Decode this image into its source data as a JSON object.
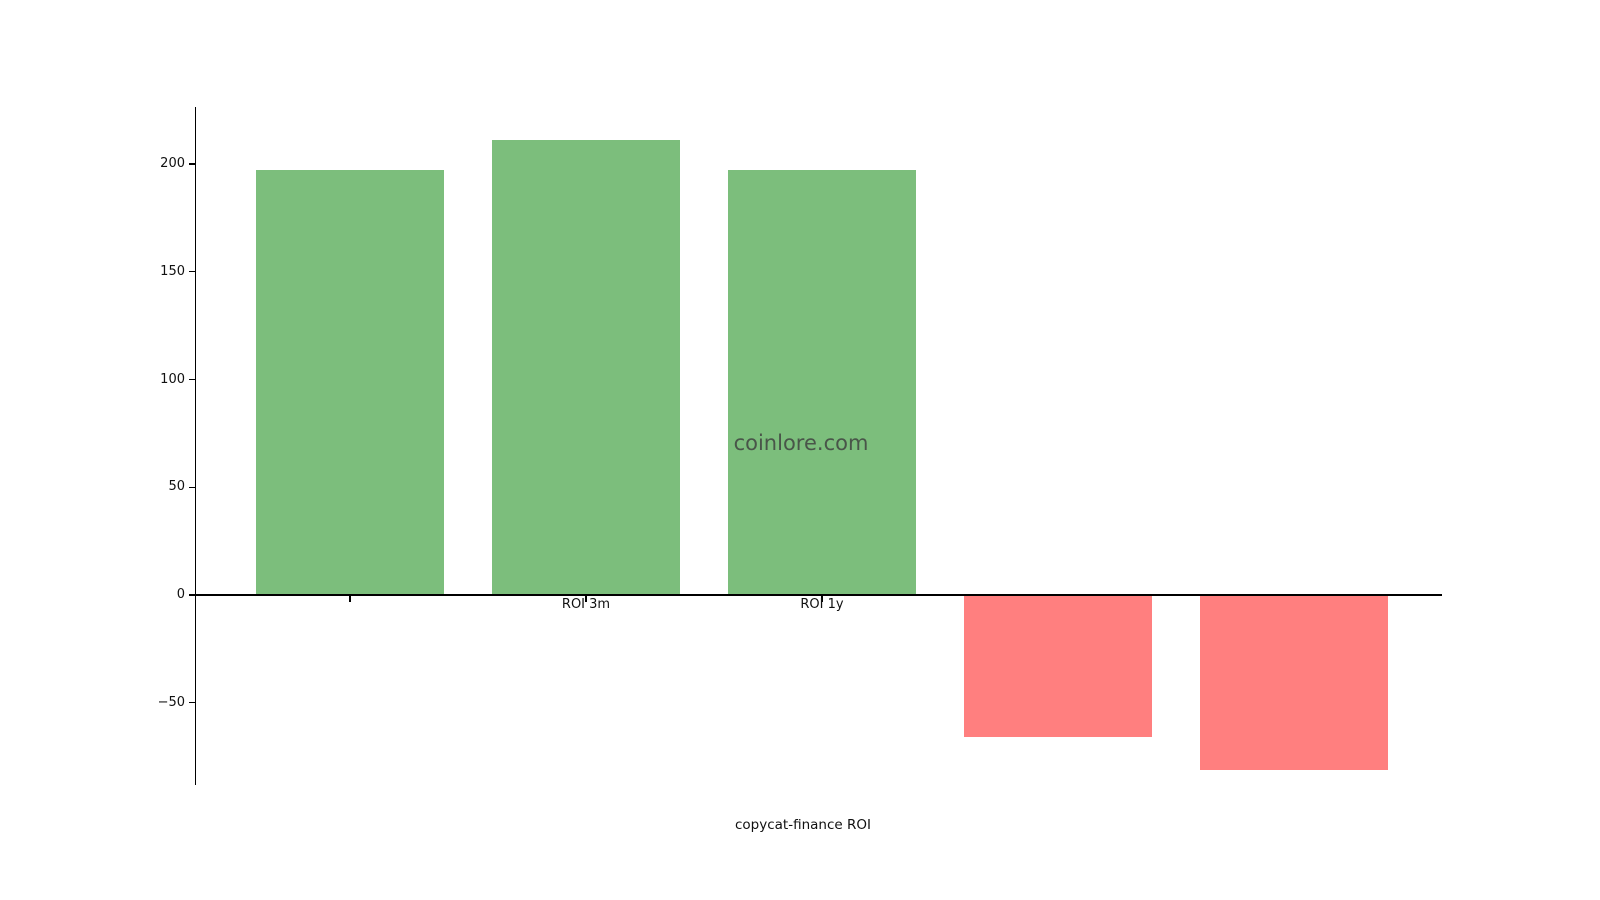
{
  "chart_data": {
    "type": "bar",
    "title": "copycat-finance ROI",
    "watermark": "coinlore.com",
    "categories": [
      "",
      "ROI 3m",
      "ROI 1y",
      "",
      ""
    ],
    "values": [
      197,
      211,
      197,
      -66,
      -81
    ],
    "x_tick_visible": [
      true,
      true,
      true,
      false,
      false
    ],
    "y_ticks": [
      200,
      150,
      100,
      50,
      0,
      -50
    ],
    "ylim": [
      -88,
      226
    ],
    "xlabel": "copycat-finance ROI",
    "ylabel": "",
    "grid": false,
    "legend": null,
    "colors": {
      "positive_bar": "#7cbe7c",
      "negative_bar": "#ff7f7f",
      "axis": "#000000",
      "tick_text": "#111111",
      "watermark_text": "#3e3e3e"
    }
  }
}
